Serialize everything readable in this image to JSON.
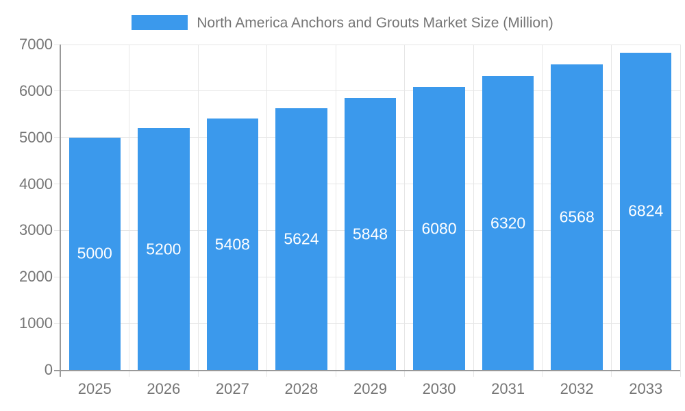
{
  "legend": {
    "label": "North America Anchors and Grouts Market Size (Million)"
  },
  "chart_data": {
    "type": "bar",
    "title": "North America Anchors and Grouts Market Size (Million)",
    "categories": [
      "2025",
      "2026",
      "2027",
      "2028",
      "2029",
      "2030",
      "2031",
      "2032",
      "2033"
    ],
    "values": [
      5000,
      5200,
      5408,
      5624,
      5848,
      6080,
      6320,
      6568,
      6824
    ],
    "xlabel": "",
    "ylabel": "",
    "ylim": [
      0,
      7000
    ],
    "ytick_step": 1000,
    "grid": true,
    "legend_position": "top",
    "colors": {
      "bar": "#3B99EC",
      "bar_label": "#FFFFFF",
      "axis": "#999999",
      "grid": "#E6E6E6",
      "text": "#757575",
      "background": "#FFFFFF"
    }
  }
}
